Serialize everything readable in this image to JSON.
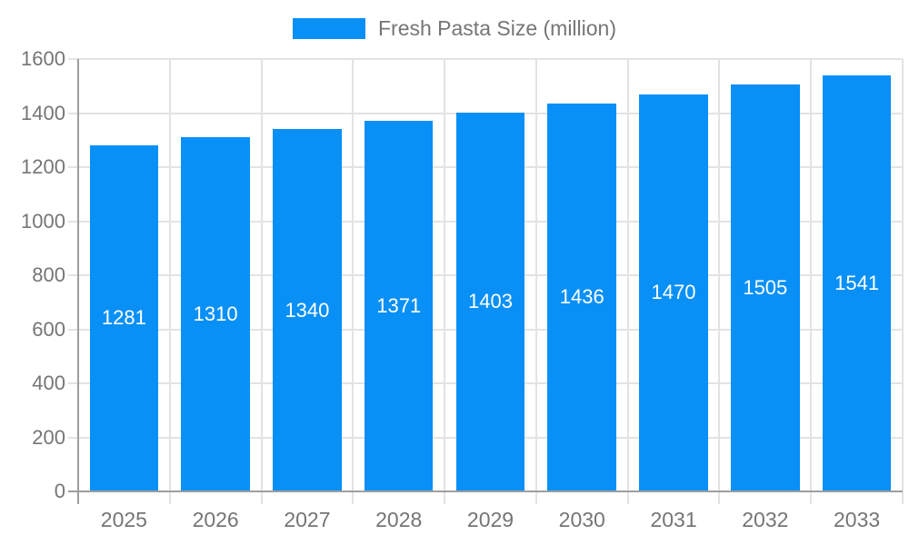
{
  "legend": {
    "label": "Fresh Pasta Size (million)"
  },
  "chart_data": {
    "type": "bar",
    "series_name": "Fresh Pasta Size (million)",
    "categories": [
      "2025",
      "2026",
      "2027",
      "2028",
      "2029",
      "2030",
      "2031",
      "2032",
      "2033"
    ],
    "values": [
      1281,
      1310,
      1340,
      1371,
      1403,
      1436,
      1470,
      1505,
      1541
    ],
    "title": "",
    "xlabel": "",
    "ylabel": "",
    "ylim": [
      0,
      1600
    ],
    "y_ticks": [
      0,
      200,
      400,
      600,
      800,
      1000,
      1200,
      1400,
      1600
    ],
    "grid": true,
    "legend_position": "top-center",
    "value_labels": "inside-middle",
    "colors": {
      "bar": "#0890f7",
      "grid": "#e3e3e3",
      "axis": "#9e9e9e",
      "text": "#757575",
      "value_label": "#ffffff"
    }
  }
}
